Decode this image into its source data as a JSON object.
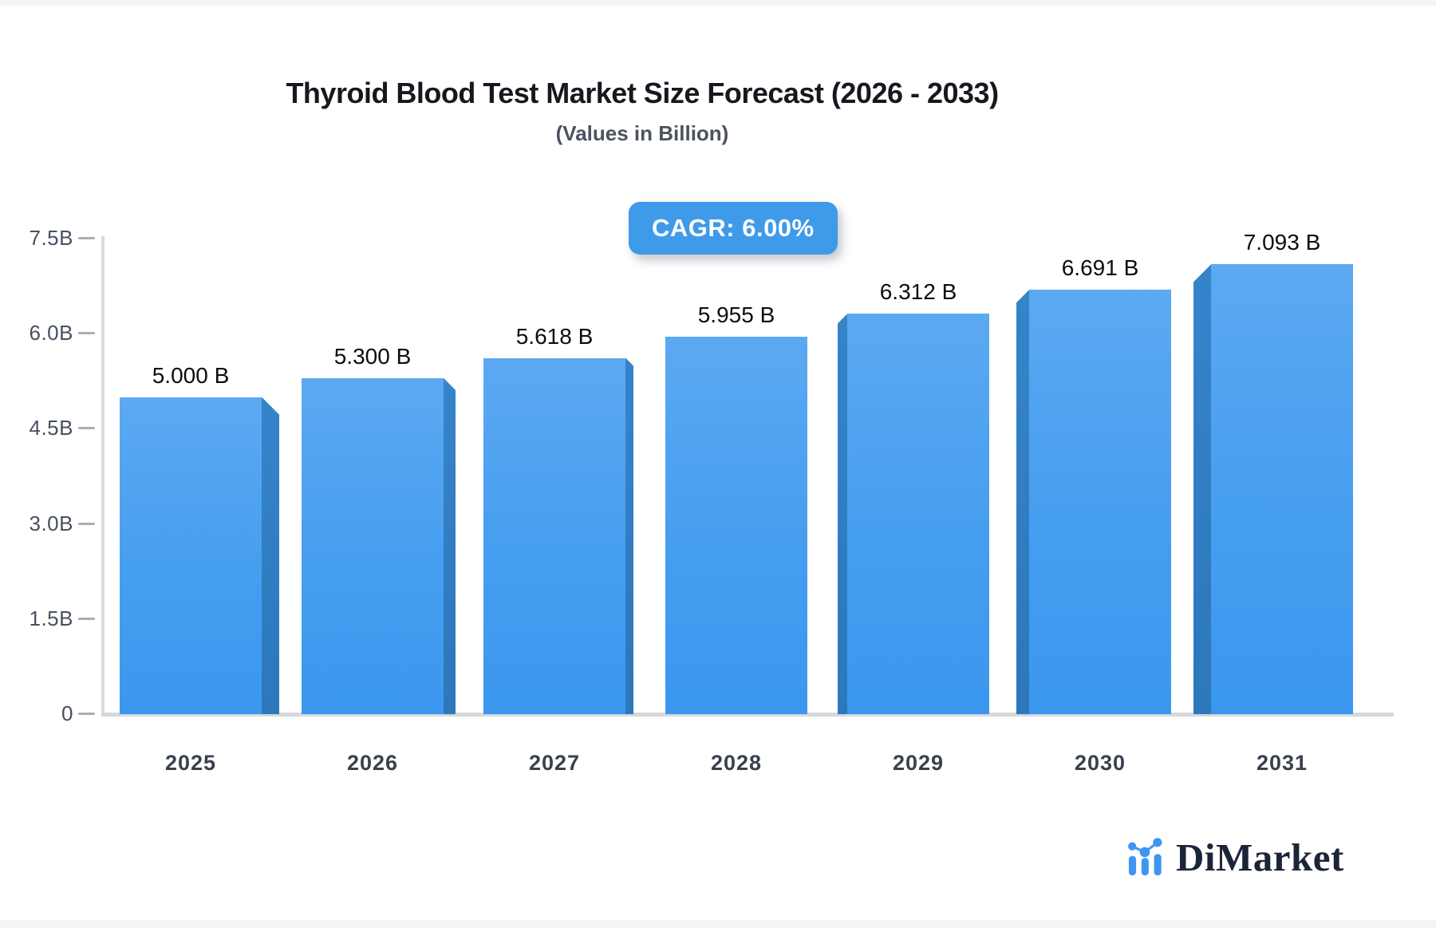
{
  "chart": {
    "title": "Thyroid Blood Test Market Size Forecast (2026 - 2033)",
    "subtitle": "(Values in Billion)",
    "badge_label": "CAGR: 6.00%"
  },
  "chart_data": {
    "type": "bar",
    "title": "Thyroid Blood Test Market Size Forecast (2026 - 2033)",
    "subtitle": "(Values in Billion)",
    "annotation": "CAGR: 6.00%",
    "categories": [
      "2025",
      "2026",
      "2027",
      "2028",
      "2029",
      "2030",
      "2031"
    ],
    "values": [
      5.0,
      5.3,
      5.618,
      5.955,
      6.312,
      6.691,
      7.093
    ],
    "value_labels": [
      "5.000 B",
      "5.300 B",
      "5.618 B",
      "5.955 B",
      "6.312 B",
      "6.691 B",
      "7.093 B"
    ],
    "y_ticks": [
      {
        "label": "7.5B",
        "value": 7.5
      },
      {
        "label": "6.0B",
        "value": 6.0
      },
      {
        "label": "4.5B",
        "value": 4.5
      },
      {
        "label": "3.0B",
        "value": 3.0
      },
      {
        "label": "1.5B",
        "value": 1.5
      },
      {
        "label": "0",
        "value": 0
      }
    ],
    "ylim": [
      0,
      7.5
    ],
    "grid": false,
    "legend": "none",
    "xlabel": "",
    "ylabel": "",
    "colors": {
      "bar_face_top": "#5ca9f1",
      "bar_face_bottom": "#3b97ee",
      "bar_side": "#2e7abf",
      "badge_background": "#3f9ae9",
      "badge_text": "#ffffff",
      "axis_line": "#d8d9dd",
      "tick_text": "#46505f",
      "value_text": "#0c0d0f"
    }
  },
  "logo": {
    "text": "DiMarket",
    "icon": "mini-bar-chart-icon",
    "icon_color": "#3f96f2",
    "text_color": "#1c2438"
  }
}
